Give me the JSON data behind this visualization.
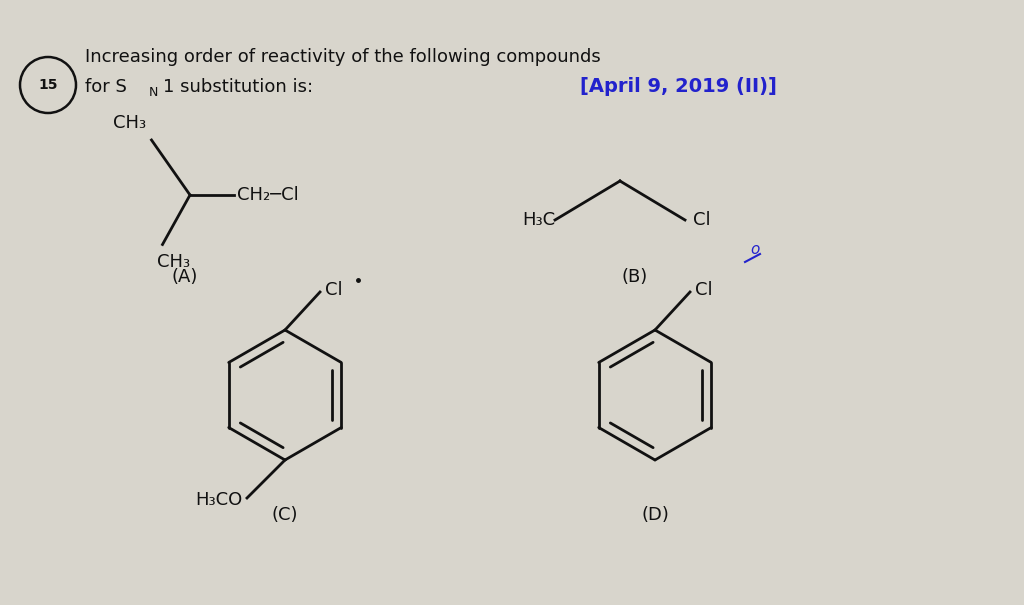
{
  "background_color": "#d8d5cc",
  "title_line1": "Increasing order of reactivity of the following compounds",
  "title_line2_pre": "for S",
  "title_line2_sub": "N",
  "title_line2_post": "1 substitution is:",
  "title_right": "[April 9, 2019 (II)]",
  "question_num": "15",
  "text_color": "#111111",
  "blue_color": "#2222cc",
  "lw_mol": 2.0,
  "font_mol": 13,
  "font_label": 13,
  "font_title": 13
}
